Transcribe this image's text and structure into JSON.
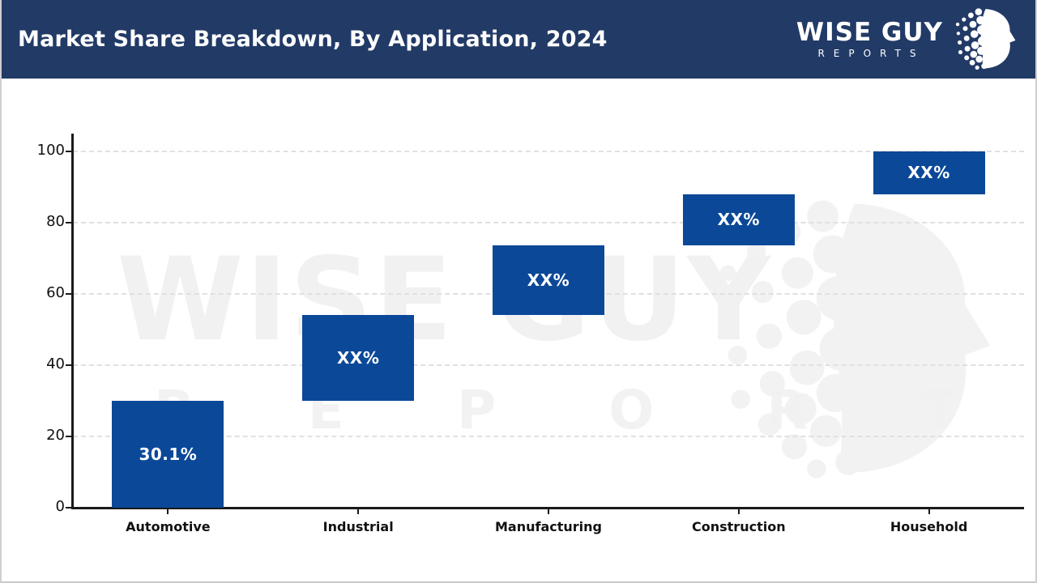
{
  "header": {
    "title": "Market Share Breakdown, By Application, 2024",
    "logo": {
      "line1": "WISE GUY",
      "line2": "REPORTS"
    }
  },
  "watermark": {
    "line1": "WISE GUY",
    "line2": "REPORTS"
  },
  "colors": {
    "header_bg": "#223a66",
    "bar": "#0b4898",
    "bar_label": "#ffffff",
    "axis": "#1a1a1a",
    "gridline": "#e0e0e0",
    "watermark": "#f1f1f1"
  },
  "chart_data": {
    "type": "bar",
    "subtype": "waterfall-floating-bars",
    "title": "Market Share Breakdown, By Application, 2024",
    "xlabel": "",
    "ylabel": "",
    "ylim": [
      0,
      100
    ],
    "yticks": [
      0,
      20,
      40,
      60,
      80,
      100
    ],
    "ytick_labels": [
      "0",
      "20",
      "40",
      "60",
      "80",
      "100"
    ],
    "grid": "dashed-horizontal",
    "legend": "none",
    "categories": [
      "Automotive",
      "Industrial",
      "Manufacturing",
      "Construction",
      "Household"
    ],
    "bars": [
      {
        "category": "Automotive",
        "start": 0,
        "end": 30.1,
        "segment": 30.1,
        "label": "30.1%"
      },
      {
        "category": "Industrial",
        "start": 30.1,
        "end": 54.0,
        "segment": 23.9,
        "label": "XX%"
      },
      {
        "category": "Manufacturing",
        "start": 54.0,
        "end": 73.6,
        "segment": 19.6,
        "label": "XX%"
      },
      {
        "category": "Construction",
        "start": 73.6,
        "end": 88.0,
        "segment": 14.4,
        "label": "XX%"
      },
      {
        "category": "Household",
        "start": 88.0,
        "end": 100.0,
        "segment": 12.0,
        "label": "XX%"
      }
    ]
  }
}
